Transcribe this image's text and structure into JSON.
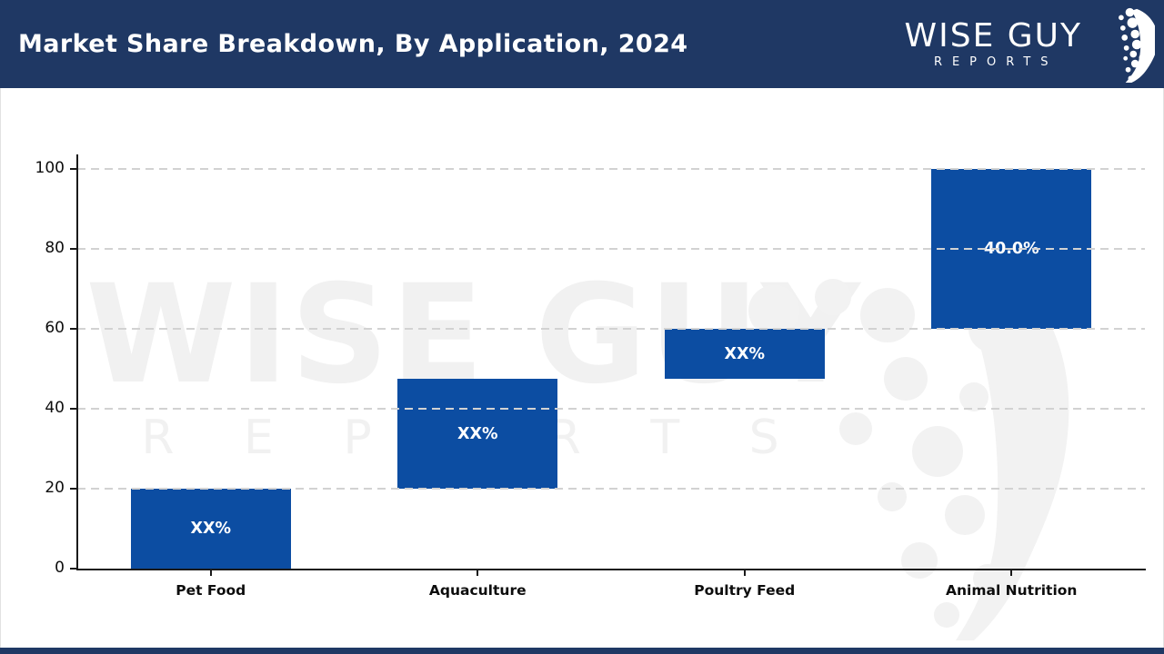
{
  "header": {
    "title": "Market Share Breakdown, By Application, 2024",
    "logo": {
      "primary": "WISE GUY",
      "secondary": "REPORTS"
    }
  },
  "watermark": {
    "primary": "WISE GUY",
    "secondary": "R E P O R T S"
  },
  "chart_data": {
    "type": "bar",
    "subtype": "waterfall",
    "title": "Market Share Breakdown, By Application, 2024",
    "categories": [
      "Pet Food",
      "Aquaculture",
      "Poultry Feed",
      "Animal Nutrition"
    ],
    "series": [
      {
        "name": "Market Share (%)",
        "segments": [
          {
            "category": "Pet Food",
            "start": 0,
            "end": 20,
            "value": 20,
            "label": "XX%"
          },
          {
            "category": "Aquaculture",
            "start": 20,
            "end": 47.5,
            "value": 27.5,
            "label": "XX%"
          },
          {
            "category": "Poultry Feed",
            "start": 47.5,
            "end": 60,
            "value": 12.5,
            "label": "XX%"
          },
          {
            "category": "Animal Nutrition",
            "start": 60,
            "end": 100,
            "value": 40,
            "label": "40.0%"
          }
        ]
      }
    ],
    "xlabel": "",
    "ylabel": "",
    "ylim": [
      0,
      104
    ],
    "yticks": [
      0,
      20,
      40,
      60,
      80,
      100
    ],
    "grid": "horizontal-dashed",
    "legend": "none"
  },
  "colors": {
    "header_bg": "#1f3864",
    "footer_bg": "#1f3864",
    "bar": "#0c4da2",
    "bar_label": "#ffffff",
    "watermark": "#f1f1f1",
    "gridline": "#d2d2d2",
    "axis": "#1a1a1a"
  }
}
